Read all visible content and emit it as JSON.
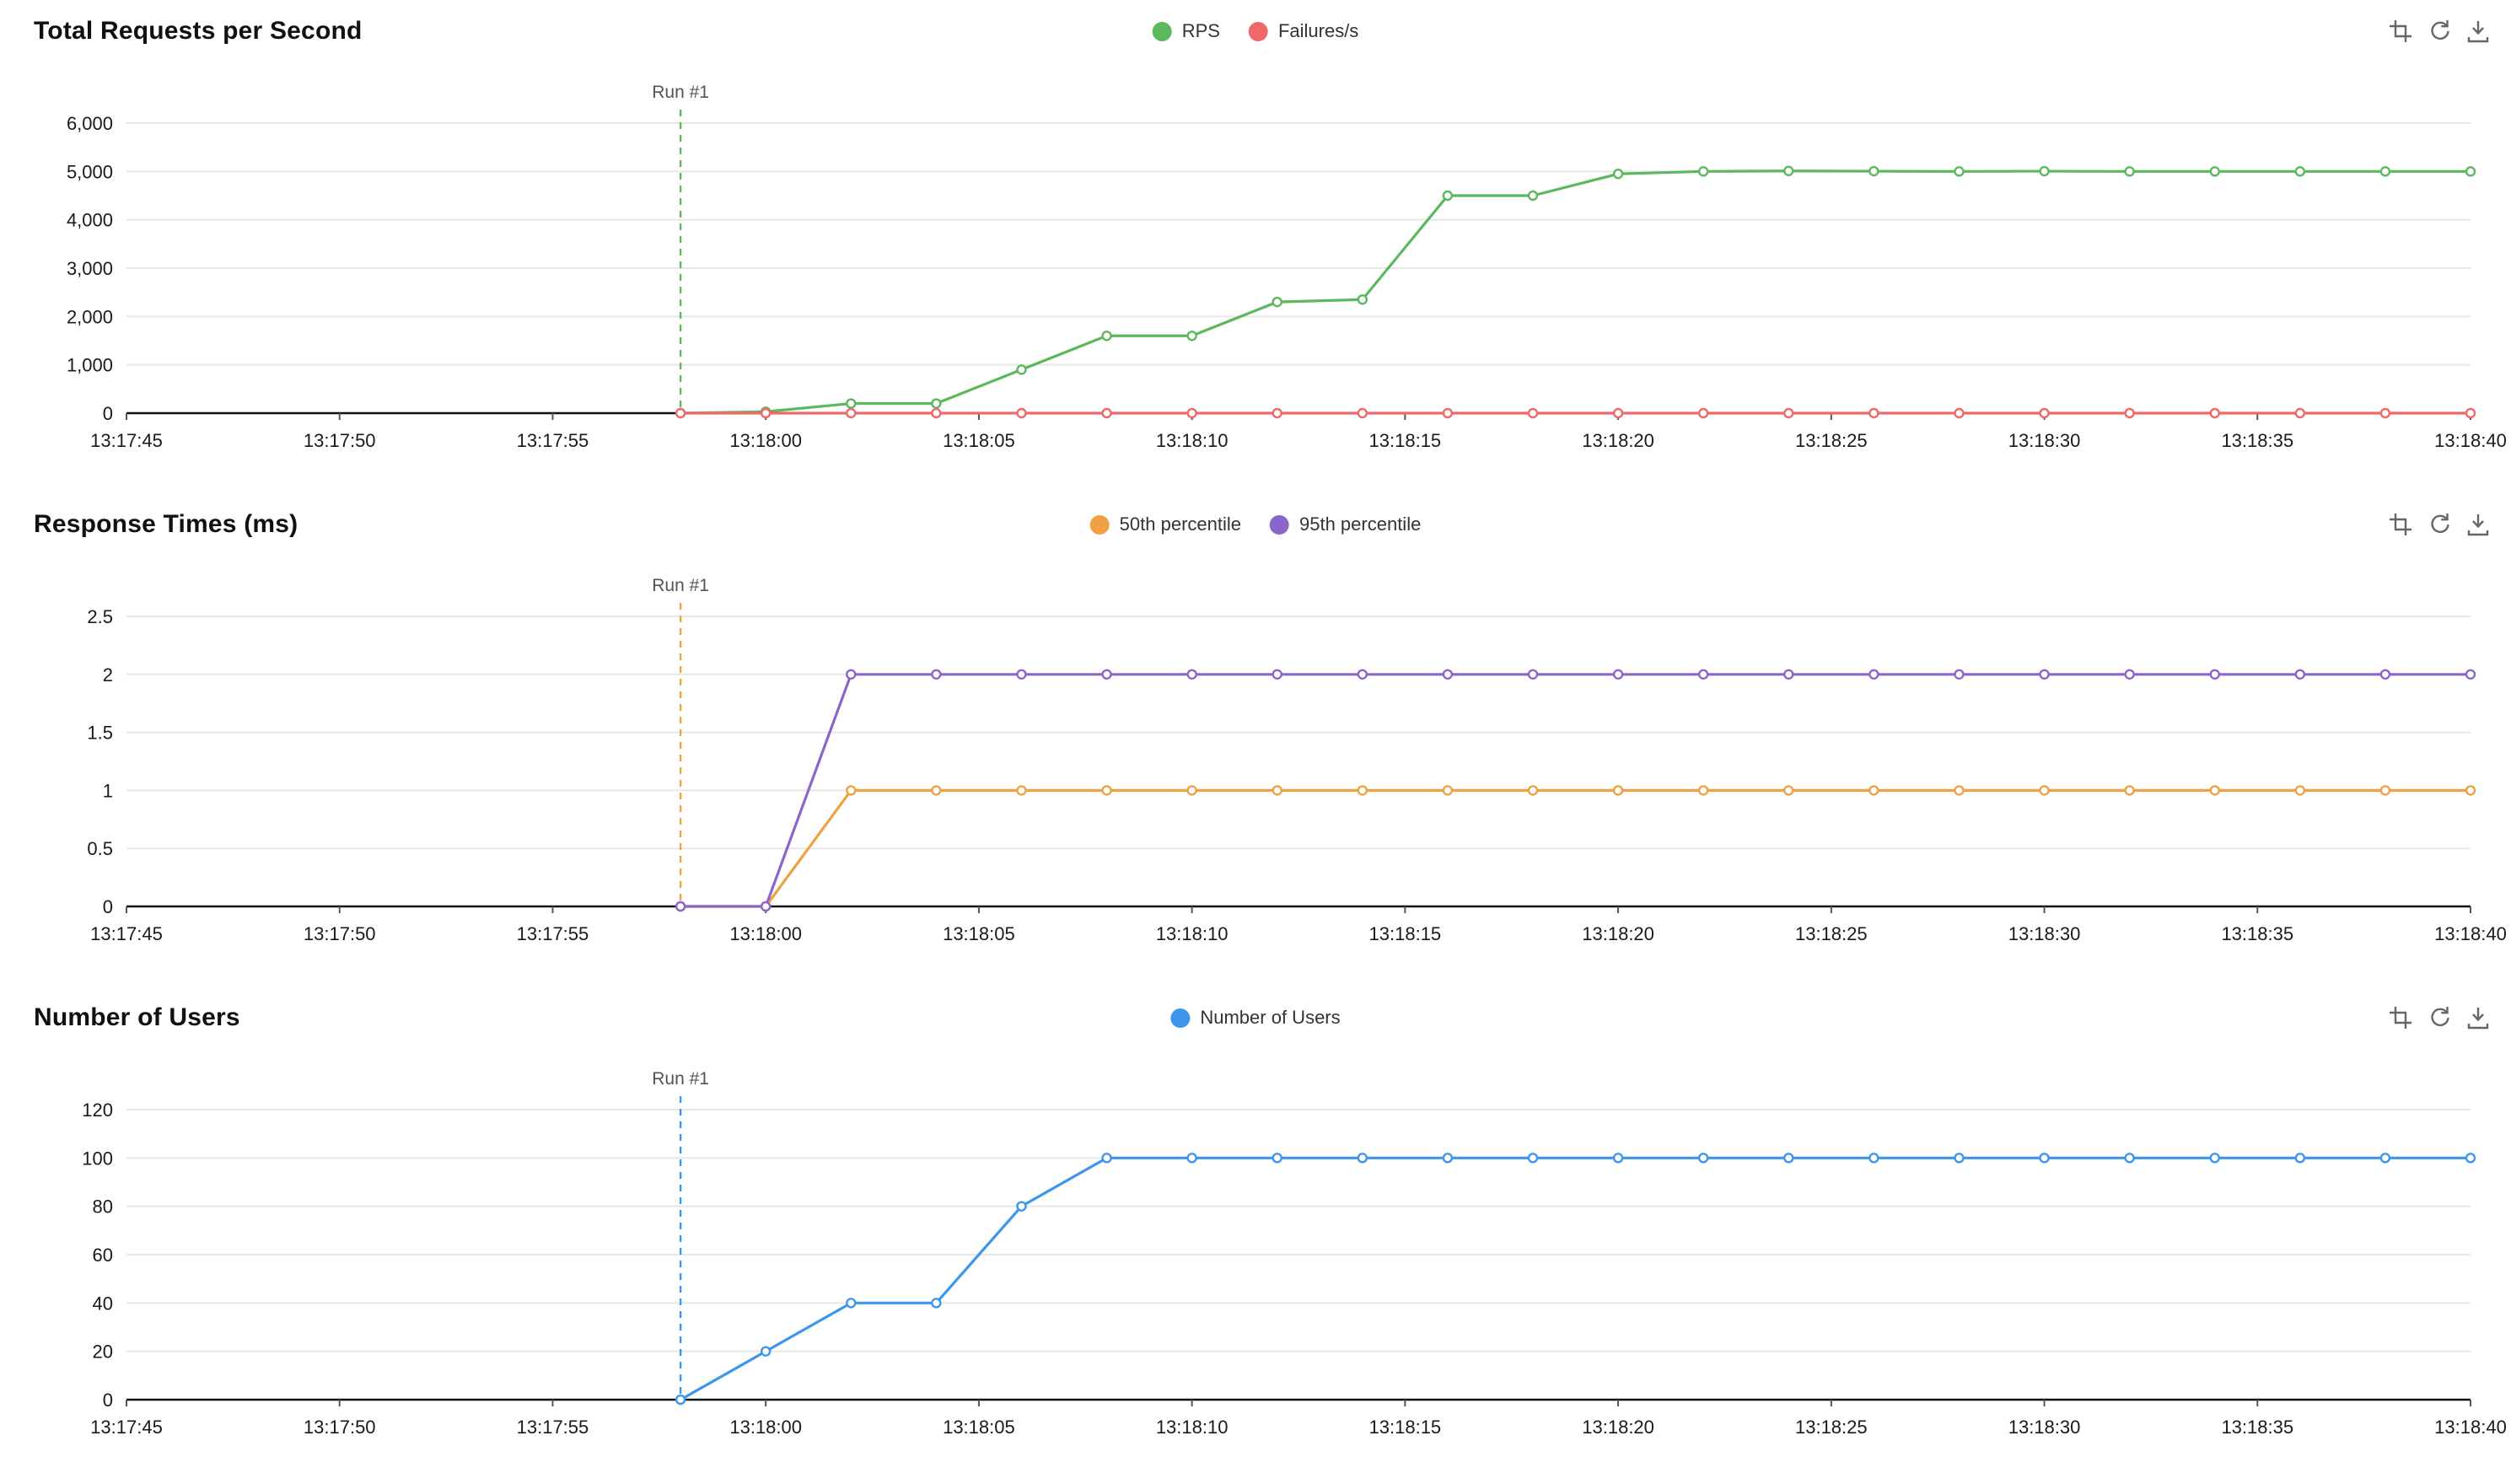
{
  "toolbox": {
    "icons": [
      "data-zoom-icon",
      "restore-icon",
      "download-icon"
    ]
  },
  "chart_data": [
    {
      "type": "line",
      "title": "Total Requests per Second",
      "xlabel": "",
      "ylabel": "",
      "xlim": [
        "13:17:45",
        "13:18:40"
      ],
      "ylim": [
        0,
        6000
      ],
      "grid": "horizontal",
      "legend_position": "top-center",
      "x_tick_labels": [
        "13:17:45",
        "13:17:50",
        "13:17:55",
        "13:18:00",
        "13:18:05",
        "13:18:10",
        "13:18:15",
        "13:18:20",
        "13:18:25",
        "13:18:30",
        "13:18:35",
        "13:18:40"
      ],
      "y_ticks": [
        {
          "v": 0,
          "label": "0"
        },
        {
          "v": 1000,
          "label": "1,000"
        },
        {
          "v": 2000,
          "label": "2,000"
        },
        {
          "v": 3000,
          "label": "3,000"
        },
        {
          "v": 4000,
          "label": "4,000"
        },
        {
          "v": 5000,
          "label": "5,000"
        },
        {
          "v": 6000,
          "label": "6,000"
        }
      ],
      "x": [
        "13:17:58",
        "13:18:00",
        "13:18:02",
        "13:18:04",
        "13:18:06",
        "13:18:08",
        "13:18:10",
        "13:18:12",
        "13:18:14",
        "13:18:16",
        "13:18:18",
        "13:18:20",
        "13:18:22",
        "13:18:24",
        "13:18:26",
        "13:18:28",
        "13:18:30",
        "13:18:32",
        "13:18:34",
        "13:18:36",
        "13:18:38",
        "13:18:40"
      ],
      "series": [
        {
          "name": "RPS",
          "color": "#5CB85C",
          "values": [
            0,
            30,
            200,
            200,
            900,
            1600,
            1600,
            2300,
            2350,
            4500,
            4500,
            4950,
            5000,
            5010,
            5005,
            5000,
            5005,
            5000,
            5000,
            5000,
            5000,
            5000
          ]
        },
        {
          "name": "Failures/s",
          "color": "#EE6A6A",
          "values": [
            0,
            0,
            0,
            0,
            0,
            0,
            0,
            0,
            0,
            0,
            0,
            0,
            0,
            0,
            0,
            0,
            0,
            0,
            0,
            0,
            0,
            0
          ]
        }
      ],
      "mark_line": {
        "x": "13:17:58",
        "label": "Run #1",
        "color": "#5CB85C"
      }
    },
    {
      "type": "line",
      "title": "Response Times (ms)",
      "xlabel": "",
      "ylabel": "",
      "xlim": [
        "13:17:45",
        "13:18:40"
      ],
      "ylim": [
        0,
        2.5
      ],
      "grid": "horizontal",
      "legend_position": "top-center",
      "x_tick_labels": [
        "13:17:45",
        "13:17:50",
        "13:17:55",
        "13:18:00",
        "13:18:05",
        "13:18:10",
        "13:18:15",
        "13:18:20",
        "13:18:25",
        "13:18:30",
        "13:18:35",
        "13:18:40"
      ],
      "y_ticks": [
        {
          "v": 0,
          "label": "0"
        },
        {
          "v": 0.5,
          "label": "0.5"
        },
        {
          "v": 1,
          "label": "1"
        },
        {
          "v": 1.5,
          "label": "1.5"
        },
        {
          "v": 2,
          "label": "2"
        },
        {
          "v": 2.5,
          "label": "2.5"
        }
      ],
      "x": [
        "13:17:58",
        "13:18:00",
        "13:18:02",
        "13:18:04",
        "13:18:06",
        "13:18:08",
        "13:18:10",
        "13:18:12",
        "13:18:14",
        "13:18:16",
        "13:18:18",
        "13:18:20",
        "13:18:22",
        "13:18:24",
        "13:18:26",
        "13:18:28",
        "13:18:30",
        "13:18:32",
        "13:18:34",
        "13:18:36",
        "13:18:38",
        "13:18:40"
      ],
      "series": [
        {
          "name": "50th percentile",
          "color": "#EFA143",
          "values": [
            0,
            0,
            1,
            1,
            1,
            1,
            1,
            1,
            1,
            1,
            1,
            1,
            1,
            1,
            1,
            1,
            1,
            1,
            1,
            1,
            1,
            1
          ]
        },
        {
          "name": "95th percentile",
          "color": "#8B66C9",
          "values": [
            0,
            0,
            2,
            2,
            2,
            2,
            2,
            2,
            2,
            2,
            2,
            2,
            2,
            2,
            2,
            2,
            2,
            2,
            2,
            2,
            2,
            2
          ]
        }
      ],
      "mark_line": {
        "x": "13:17:58",
        "label": "Run #1",
        "color": "#EFA143"
      }
    },
    {
      "type": "line",
      "title": "Number of Users",
      "xlabel": "",
      "ylabel": "",
      "xlim": [
        "13:17:45",
        "13:18:40"
      ],
      "ylim": [
        0,
        120
      ],
      "grid": "horizontal",
      "legend_position": "top-center",
      "x_tick_labels": [
        "13:17:45",
        "13:17:50",
        "13:17:55",
        "13:18:00",
        "13:18:05",
        "13:18:10",
        "13:18:15",
        "13:18:20",
        "13:18:25",
        "13:18:30",
        "13:18:35",
        "13:18:40"
      ],
      "y_ticks": [
        {
          "v": 0,
          "label": "0"
        },
        {
          "v": 20,
          "label": "20"
        },
        {
          "v": 40,
          "label": "40"
        },
        {
          "v": 60,
          "label": "60"
        },
        {
          "v": 80,
          "label": "80"
        },
        {
          "v": 100,
          "label": "100"
        },
        {
          "v": 120,
          "label": "120"
        }
      ],
      "x": [
        "13:17:58",
        "13:18:00",
        "13:18:02",
        "13:18:04",
        "13:18:06",
        "13:18:08",
        "13:18:10",
        "13:18:12",
        "13:18:14",
        "13:18:16",
        "13:18:18",
        "13:18:20",
        "13:18:22",
        "13:18:24",
        "13:18:26",
        "13:18:28",
        "13:18:30",
        "13:18:32",
        "13:18:34",
        "13:18:36",
        "13:18:38",
        "13:18:40"
      ],
      "series": [
        {
          "name": "Number of Users",
          "color": "#3D96EC",
          "values": [
            0,
            20,
            40,
            40,
            80,
            100,
            100,
            100,
            100,
            100,
            100,
            100,
            100,
            100,
            100,
            100,
            100,
            100,
            100,
            100,
            100,
            100
          ]
        }
      ],
      "mark_line": {
        "x": "13:17:58",
        "label": "Run #1",
        "color": "#3D96EC"
      }
    }
  ]
}
